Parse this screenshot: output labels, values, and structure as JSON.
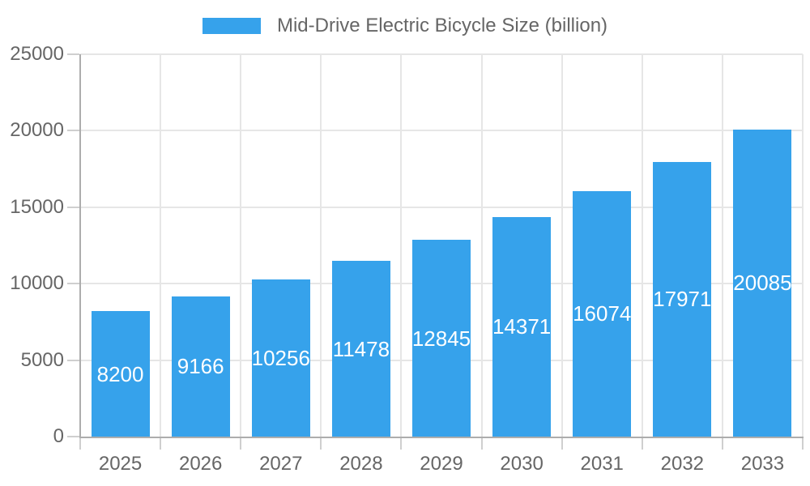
{
  "legend": {
    "label": "Mid-Drive Electric Bicycle Size (billion)"
  },
  "chart_data": {
    "type": "bar",
    "title": "",
    "legend_label": "Mid-Drive Electric Bicycle Size (billion)",
    "legend_position": "top",
    "categories": [
      "2025",
      "2026",
      "2027",
      "2028",
      "2029",
      "2030",
      "2031",
      "2032",
      "2033"
    ],
    "values": [
      8200,
      9166,
      10256,
      11478,
      12845,
      14371,
      16074,
      17971,
      20085
    ],
    "xlabel": "",
    "ylabel": "",
    "ylim": [
      0,
      25000
    ],
    "yticks": [
      0,
      5000,
      10000,
      15000,
      20000,
      25000
    ],
    "grid": true,
    "bar_labels_visible": true,
    "colors": {
      "bar": "#36A2EB",
      "bar_label": "#FFFFFF",
      "axis_text": "#666666",
      "grid": "#E6E6E6",
      "axis_line": "#ADADAD",
      "tick": "#CFCFCF",
      "background": "#FFFFFF"
    }
  }
}
